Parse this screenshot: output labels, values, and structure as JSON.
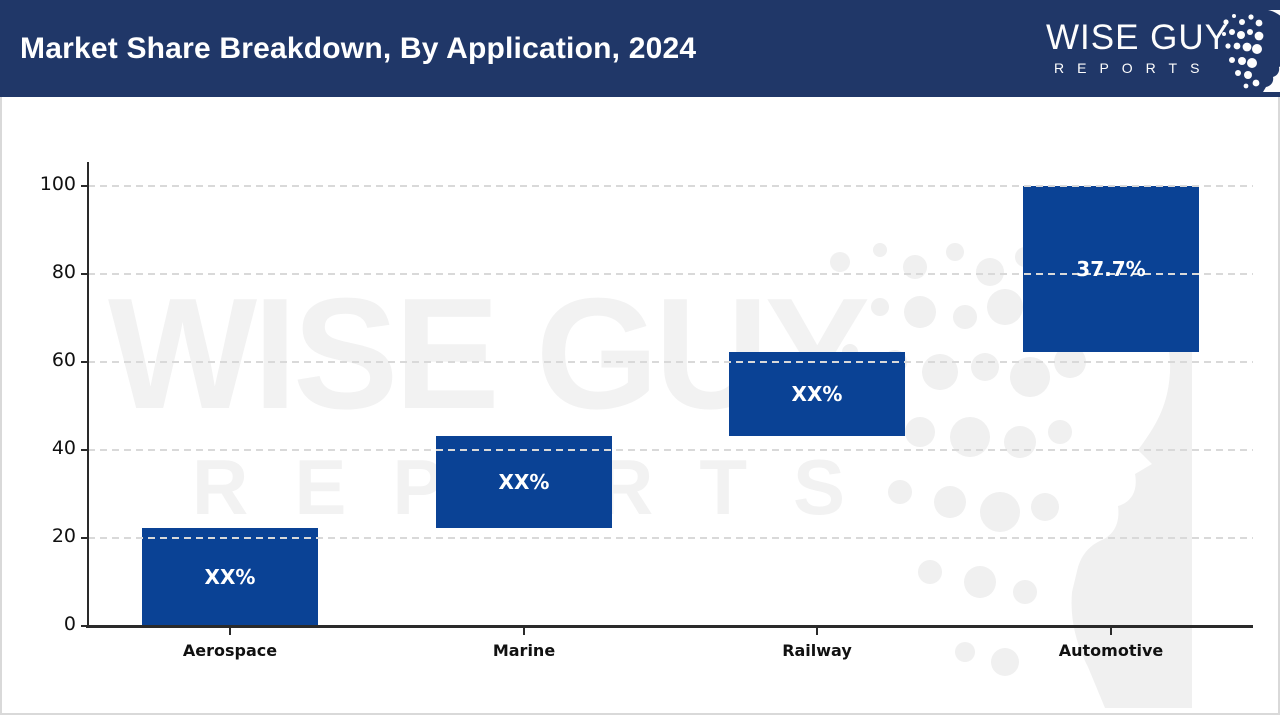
{
  "header": {
    "title": "Market Share Breakdown, By Application, 2024",
    "logo": {
      "line1": "WISE GUY",
      "line2": "REPORTS",
      "face_icon": "dotted-face-profile"
    }
  },
  "watermark": {
    "line1": "WISE GUY",
    "line2": "REPORTS",
    "face_icon": "dotted-face-profile"
  },
  "colors": {
    "header_bg": "#203768",
    "bar": "#0a4295",
    "gridline": "#d9d9d9",
    "axis": "#2a2a2a",
    "bar_label": "#ffffff",
    "watermark": "#f2f2f2"
  },
  "chart_data": {
    "type": "bar",
    "subtype": "waterfall-floating-bars",
    "title": "Market Share Breakdown, By Application, 2024",
    "categories": [
      "Aerospace",
      "Marine",
      "Railway",
      "Automotive"
    ],
    "bars": [
      {
        "category": "Aerospace",
        "start": 0,
        "end": 22.3,
        "label": "XX%"
      },
      {
        "category": "Marine",
        "start": 22.3,
        "end": 43.2,
        "label": "XX%"
      },
      {
        "category": "Railway",
        "start": 43.2,
        "end": 62.2,
        "label": "XX%"
      },
      {
        "category": "Automotive",
        "start": 62.3,
        "end": 100,
        "label": "37.7%"
      }
    ],
    "yticks": [
      0,
      20,
      40,
      60,
      80,
      100
    ],
    "ylim": [
      0,
      105
    ],
    "xlabel": "",
    "ylabel": "",
    "legend": "none",
    "grid": "horizontal-dashed",
    "gridlines_above_bars": true
  }
}
